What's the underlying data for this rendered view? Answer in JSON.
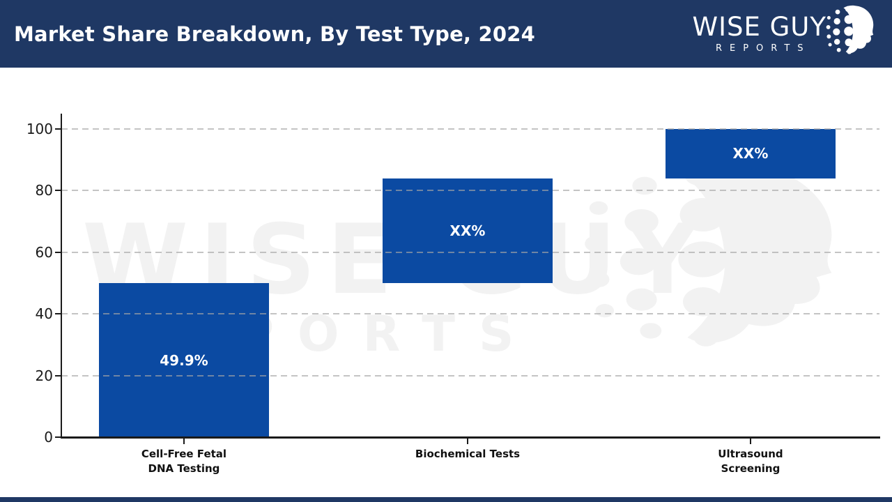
{
  "header": {
    "title": "Market Share Breakdown, By Test Type, 2024",
    "logo_line1": "WISE GUY",
    "logo_line2": "REPORTS",
    "bg_color": "#1F3864"
  },
  "watermark": {
    "line1": "WISE GUY",
    "line2": "REPORTS"
  },
  "footer": {
    "bg_color": "#1F3864"
  },
  "chart_data": {
    "type": "bar",
    "subtype": "waterfall",
    "title": "Market Share Breakdown, By Test Type, 2024",
    "categories": [
      "Cell-Free Fetal DNA Testing",
      "Biochemical Tests",
      "Ultrasound Screening"
    ],
    "category_lines": [
      [
        "Cell-Free Fetal",
        "DNA Testing"
      ],
      [
        "Biochemical Tests"
      ],
      [
        "Ultrasound",
        "Screening"
      ]
    ],
    "segments": [
      {
        "start": 0,
        "end": 49.9,
        "label": "49.9%"
      },
      {
        "start": 49.9,
        "end": 84,
        "label": "XX%"
      },
      {
        "start": 84,
        "end": 100,
        "label": "XX%"
      }
    ],
    "yticks": [
      0,
      20,
      40,
      60,
      80,
      100
    ],
    "ylim": [
      0,
      105
    ],
    "grid": true,
    "legend": false,
    "bar_color": "#0B4AA2",
    "axis_color": "#1a1a1a",
    "grid_color": "#a5a5a5",
    "label_color": "#ffffff"
  }
}
